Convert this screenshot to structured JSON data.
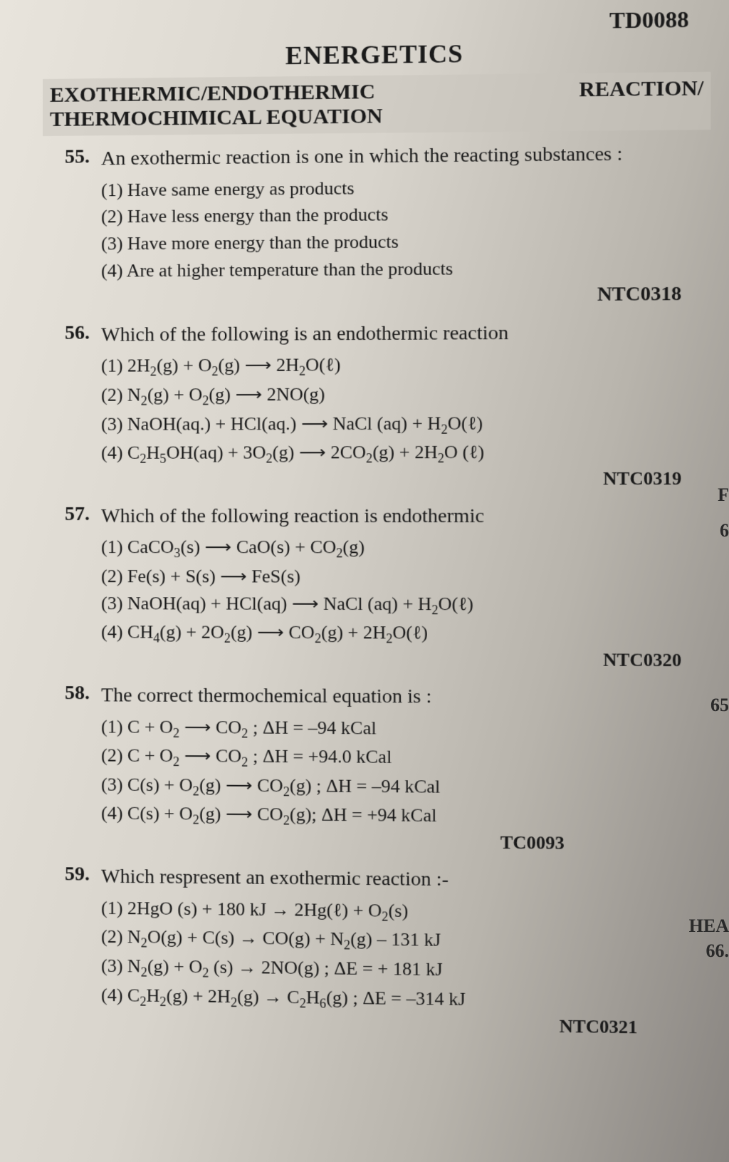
{
  "doc_code": "TD0088",
  "main_title": "ENERGETICS",
  "section_header_left": "EXOTHERMIC/ENDOTHERMIC",
  "section_header_right": "REACTION/",
  "section_header_line2": "THERMOCHIMICAL EQUATION",
  "questions": [
    {
      "num": "55.",
      "text": "An exothermic reaction is one in which the reacting substances :",
      "options": [
        "(1) Have same energy as products",
        "(2) Have less energy than the products",
        "(3) Have more energy than the products",
        "(4) Are at higher temperature than the products"
      ],
      "code": "NTC0318"
    },
    {
      "num": "56.",
      "text": "Which of the following is an endothermic reaction",
      "options_html": [
        "(1) 2H<sub>2</sub>(g) + O<sub>2</sub>(g) <span class='arrow'>⟶</span> 2H<sub>2</sub>O(ℓ)",
        "(2) N<sub>2</sub>(g) + O<sub>2</sub>(g) <span class='arrow'>⟶</span> 2NO(g)",
        "(3) NaOH(aq.) + HCl(aq.) <span class='arrow'>⟶</span> NaCl (aq) + H<sub>2</sub>O(ℓ)",
        "(4) C<sub>2</sub>H<sub>5</sub>OH(aq) + 3O<sub>2</sub>(g) <span class='arrow'>⟶</span> 2CO<sub>2</sub>(g) + 2H<sub>2</sub>O (ℓ)"
      ],
      "code": "NTC0319"
    },
    {
      "num": "57.",
      "text": "Which of the following reaction is endothermic",
      "options_html": [
        "(1) CaCO<sub>3</sub>(s) <span class='arrow'>⟶</span> CaO(s) + CO<sub>2</sub>(g)",
        "(2) Fe(s) + S(s) <span class='arrow'>⟶</span> FeS(s)",
        "(3) NaOH(aq) + HCl(aq) <span class='arrow'>⟶</span> NaCl (aq) + H<sub>2</sub>O(ℓ)",
        "(4) CH<sub>4</sub>(g) + 2O<sub>2</sub>(g) <span class='arrow'>⟶</span> CO<sub>2</sub>(g) + 2H<sub>2</sub>O(ℓ)"
      ],
      "code": "NTC0320"
    },
    {
      "num": "58.",
      "text": "The correct thermochemical equation is :",
      "options_html": [
        "(1) C + O<sub>2</sub> <span class='arrow'>⟶</span> CO<sub>2</sub> ; ΔH = –94 kCal",
        "(2) C + O<sub>2</sub> <span class='arrow'>⟶</span> CO<sub>2</sub> ; ΔH = +94.0 kCal",
        "(3) C(s) + O<sub>2</sub>(g) <span class='arrow'>⟶</span> CO<sub>2</sub>(g) ; ΔH = –94 kCal",
        "(4) C(s) + O<sub>2</sub>(g) <span class='arrow'>⟶</span> CO<sub>2</sub>(g); ΔH = +94 kCal"
      ],
      "code": "TC0093"
    },
    {
      "num": "59.",
      "text": "Which respresent an exothermic reaction :-",
      "options_html": [
        "(1) 2HgO (s) + 180 kJ → 2Hg(ℓ) + O<sub>2</sub>(s)",
        "(2) N<sub>2</sub>O(g) + C(s) → CO(g) + N<sub>2</sub>(g) – 131 kJ",
        "(3) N<sub>2</sub>(g) + O<sub>2</sub> (s) → 2NO(g) ; ΔE = + 181 kJ",
        "(4) C<sub>2</sub>H<sub>2</sub>(g) + 2H<sub>2</sub>(g) → C<sub>2</sub>H<sub>6</sub>(g) ; ΔE = –314 kJ"
      ],
      "code": "NTC0321"
    }
  ],
  "side_fragments": {
    "f": "F",
    "six": "6",
    "sixtyfive": "65",
    "hea": "HEA",
    "sixtysix": "66."
  }
}
